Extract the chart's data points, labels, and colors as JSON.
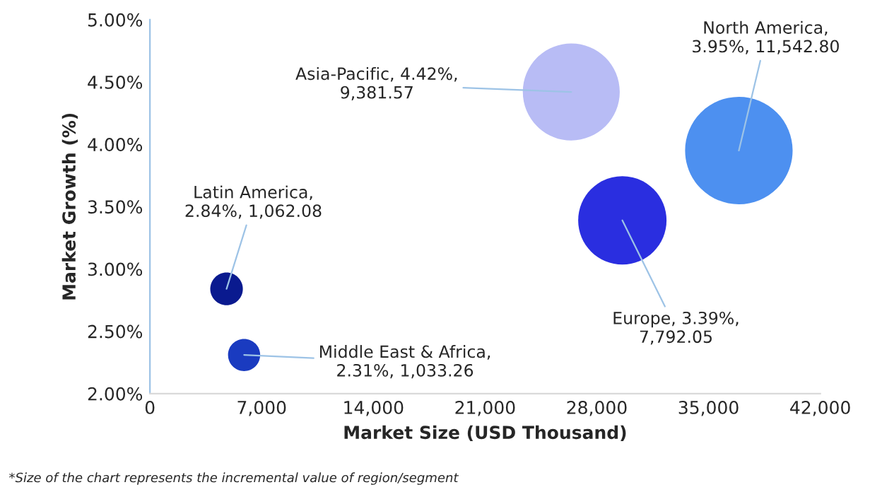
{
  "chart_data": {
    "type": "bubble",
    "xlabel": "Market Size (USD Thousand)",
    "ylabel": "Market Growth (%)",
    "xlim": [
      0,
      42000
    ],
    "xticks": [
      0,
      {
        "value": 7000,
        "label": "7,000"
      },
      {
        "value": 14000,
        "label": "14,000"
      },
      {
        "value": 21000,
        "label": "21,000"
      },
      {
        "value": 28000,
        "label": "28,000"
      },
      {
        "value": 35000,
        "label": "35,000"
      },
      {
        "value": 42000,
        "label": "42,000"
      }
    ],
    "ylim": [
      2,
      5
    ],
    "yticks": [
      {
        "value": 2,
        "label": "2.00%"
      },
      {
        "value": 2.5,
        "label": "2.50%"
      },
      {
        "value": 3,
        "label": "3.00%"
      },
      {
        "value": 3.5,
        "label": "3.50%"
      },
      {
        "value": 4,
        "label": "4.00%"
      },
      {
        "value": 4.5,
        "label": "4.50%"
      },
      {
        "value": 5,
        "label": "5.00%"
      }
    ],
    "grid": false,
    "series": [
      {
        "color": "#0a1a8f",
        "x": [
          4800
        ],
        "values": [
          2.84
        ],
        "sizes": [
          0.092
        ],
        "value_labels": [
          "Latin America,\n2.84%, 1,062.08"
        ]
      },
      {
        "color": "#1a3bc0",
        "x": [
          5900
        ],
        "values": [
          2.31
        ],
        "sizes": [
          0.0895
        ],
        "value_labels": [
          "Middle East & Africa,\n2.31%, 1,033.26"
        ]
      },
      {
        "color": "#b8bcf5",
        "x": [
          26400
        ],
        "values": [
          4.42
        ],
        "sizes": [
          0.8128
        ],
        "value_labels": [
          "Asia-Pacific, 4.42%,\n9,381.57"
        ]
      },
      {
        "color": "#2a2ee0",
        "x": [
          29600
        ],
        "values": [
          3.39
        ],
        "sizes": [
          0.6751
        ],
        "value_labels": [
          "Europe, 3.39%,\n7,792.05"
        ]
      },
      {
        "color": "#4d90f0",
        "x": [
          36900
        ],
        "values": [
          3.95
        ],
        "sizes": [
          1
        ],
        "value_labels": [
          "North America,\n3.95%, 11,542.80"
        ]
      }
    ],
    "annotations": [
      "*Size of the chart represents the incremental value of region/segment"
    ]
  }
}
